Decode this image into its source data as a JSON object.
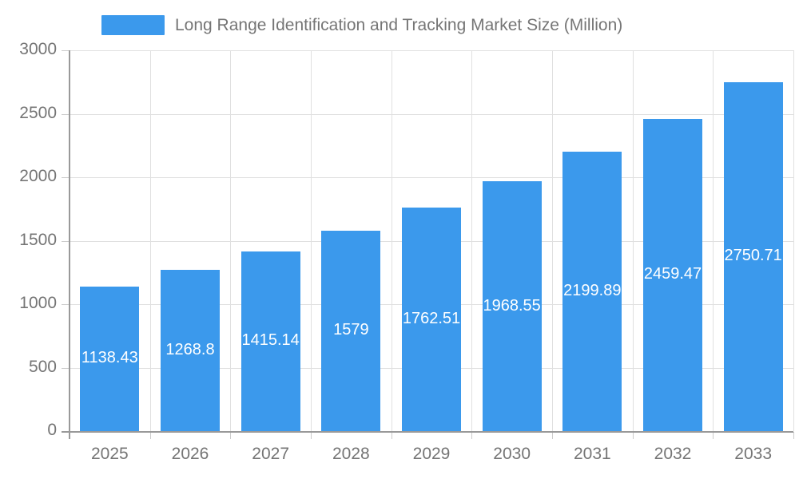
{
  "legend": {
    "label": "Long Range Identification and Tracking Market Size (Million)"
  },
  "chart_data": {
    "type": "bar",
    "title": "Long Range Identification and Tracking Market Size (Million)",
    "categories": [
      "2025",
      "2026",
      "2027",
      "2028",
      "2029",
      "2030",
      "2031",
      "2032",
      "2033"
    ],
    "values": [
      1138.43,
      1268.8,
      1415.14,
      1579,
      1762.51,
      1968.55,
      2199.89,
      2459.47,
      2750.71
    ],
    "value_labels": [
      "1138.43",
      "1268.8",
      "1415.14",
      "1579",
      "1762.51",
      "1968.55",
      "2199.89",
      "2459.47",
      "2750.71"
    ],
    "xlabel": "",
    "ylabel": "",
    "ylim": [
      0,
      3000
    ],
    "yticks": [
      0,
      500,
      1000,
      1500,
      2000,
      2500,
      3000
    ],
    "grid": "both",
    "legend_position": "top"
  },
  "colors": {
    "bar": "#3b99ec",
    "grid": "#e0e0e0",
    "axis": "#999999",
    "tick": "#cccccc",
    "text": "#757575",
    "value_label": "#ffffff",
    "background": "#ffffff"
  }
}
